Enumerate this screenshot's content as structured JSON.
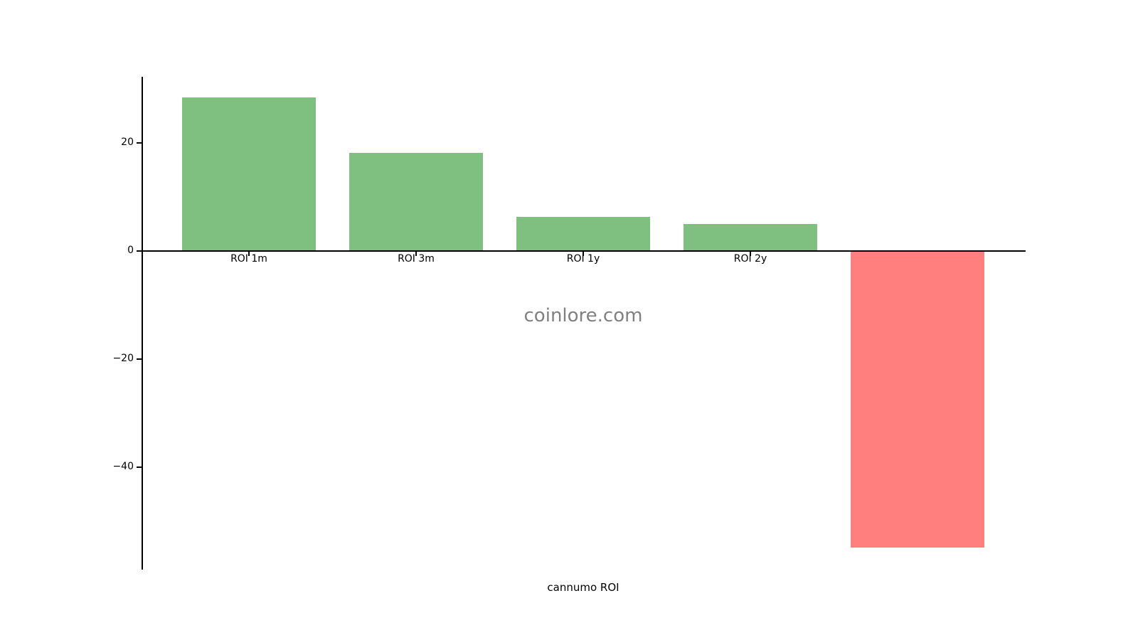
{
  "page": {
    "background_color": "#ffffff"
  },
  "watermark": {
    "text": "coinlore.com",
    "color": "#808080"
  },
  "chart_data": {
    "type": "bar",
    "title": "",
    "xlabel": "cannumo ROI",
    "ylabel": "",
    "categories": [
      "ROI 1m",
      "ROI 3m",
      "ROI 1y",
      "ROI 2y",
      ""
    ],
    "values": [
      28.4,
      18.2,
      6.3,
      5.0,
      -54.9
    ],
    "bar_colors": [
      "#7fbf7f",
      "#7fbf7f",
      "#7fbf7f",
      "#7fbf7f",
      "#ff7f7f"
    ],
    "positive_color": "#7fbf7f",
    "negative_color": "#ff7f7f",
    "y_ticks": [
      20,
      0,
      -20,
      -40
    ],
    "y_tick_labels": [
      "20",
      "0",
      "−20",
      "−40"
    ],
    "ylim": [
      -58.9,
      32.2
    ],
    "grid": false,
    "legend": null,
    "axis_color": "#000000"
  }
}
